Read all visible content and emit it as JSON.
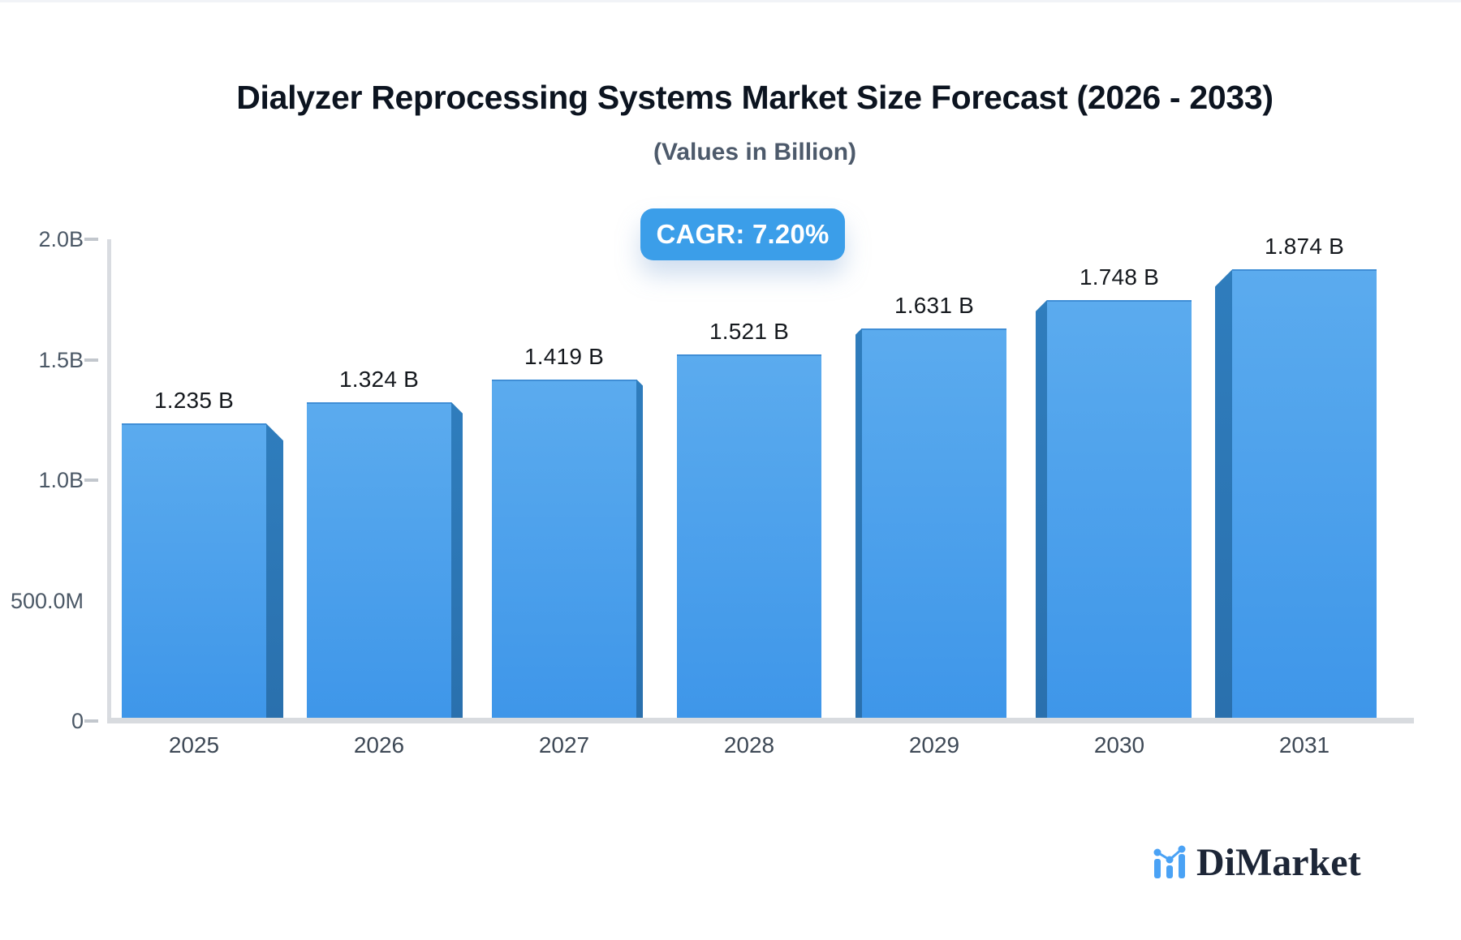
{
  "title": "Dialyzer Reprocessing Systems Market Size Forecast (2026 - 2033)",
  "subtitle": "(Values in Billion)",
  "badge": {
    "label": "CAGR: 7.20%",
    "bg_color": "#3b9ee9"
  },
  "watermark": {
    "brand": "DiMarket",
    "icon": "bar-chart-logo-icon",
    "icon_color": "#4aa2f5",
    "text_color": "#1d2637"
  },
  "chart_data": {
    "type": "bar",
    "title": "Dialyzer Reprocessing Systems Market Size Forecast (2026 - 2033)",
    "subtitle": "(Values in Billion)",
    "categories": [
      "2025",
      "2026",
      "2027",
      "2028",
      "2029",
      "2030",
      "2031"
    ],
    "values": [
      1.235,
      1.324,
      1.419,
      1.521,
      1.631,
      1.748,
      1.874
    ],
    "bar_labels": [
      "1.235 B",
      "1.324 B",
      "1.419 B",
      "1.521 B",
      "1.631 B",
      "1.748 B",
      "1.874 B"
    ],
    "xlabel": "",
    "ylabel": "",
    "ylim": [
      0,
      2.0
    ],
    "yticks": [
      {
        "label": "2.0B",
        "value": 2.0,
        "dash": true
      },
      {
        "label": "1.5B",
        "value": 1.5,
        "dash": true
      },
      {
        "label": "1.0B",
        "value": 1.0,
        "dash": true
      },
      {
        "label": "500.0M",
        "value": 0.5,
        "dash": false
      },
      {
        "label": "0",
        "value": 0.0,
        "dash": true
      }
    ],
    "grid": false,
    "legend": false,
    "style_3d": true,
    "bar_color_top": "#5babee",
    "bar_color_bottom": "#3e96e9",
    "bar_side_color_light": "#2f7dbd",
    "bar_side_color_dark": "#2a70ad"
  }
}
